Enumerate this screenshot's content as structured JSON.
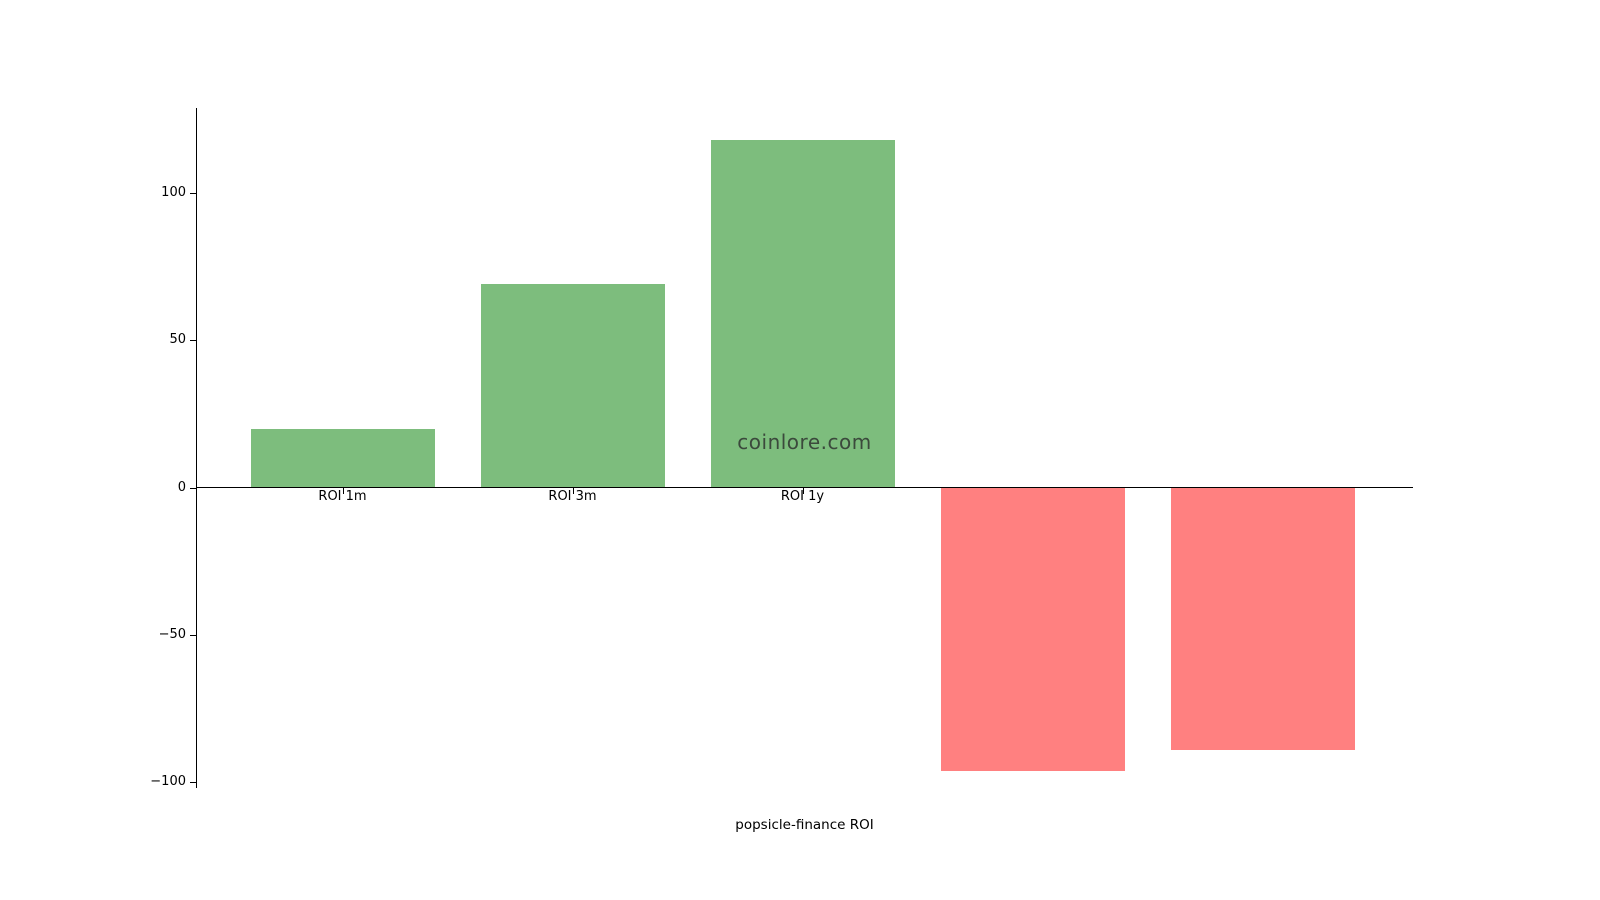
{
  "page": {
    "background": "#ffffff"
  },
  "watermark": {
    "text": "coinlore.com",
    "color": "#3b493c"
  },
  "chart_data": {
    "type": "bar",
    "title": "popsicle-finance ROI",
    "categories": [
      "ROI 1m",
      "ROI 3m",
      "ROI 1y",
      "",
      ""
    ],
    "values": [
      20,
      69,
      118,
      -96,
      -89
    ],
    "positive_color": "#7dbd7d",
    "negative_color": "#ff8080",
    "yticks": [
      100,
      50,
      0,
      -50,
      -100
    ],
    "ylim": [
      -102,
      129
    ],
    "xlabel": "",
    "ylabel": "",
    "grid": false,
    "legend_position": "none",
    "axis_color": "#000000"
  }
}
